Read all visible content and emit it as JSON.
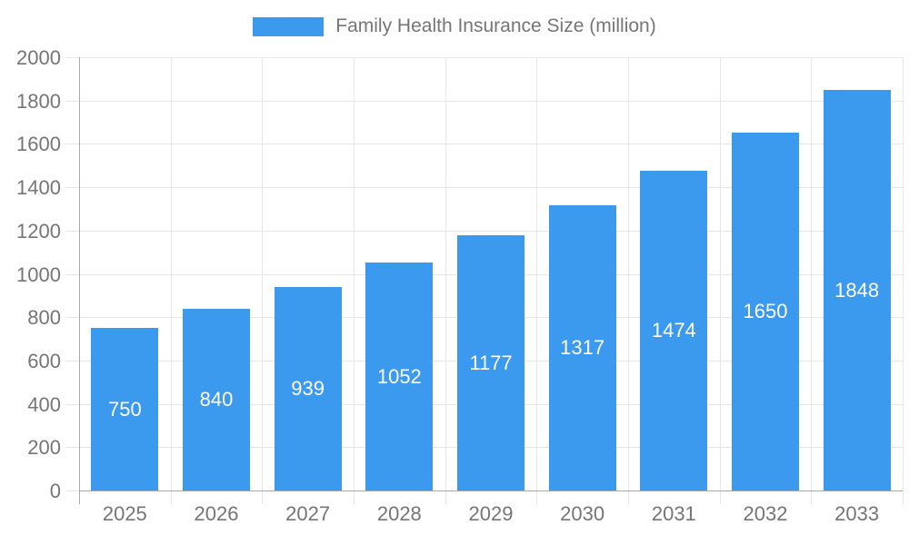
{
  "chart_data": {
    "type": "bar",
    "title": "Family Health Insurance Size (million)",
    "legend": [
      "Family Health Insurance Size (million)"
    ],
    "legend_position": "top",
    "categories": [
      "2025",
      "2026",
      "2027",
      "2028",
      "2029",
      "2030",
      "2031",
      "2032",
      "2033"
    ],
    "values": [
      750,
      840,
      939,
      1052,
      1177,
      1317,
      1474,
      1650,
      1848
    ],
    "xlabel": "",
    "ylabel": "",
    "ylim": [
      0,
      2000
    ],
    "ytick_step": 200,
    "yticks": [
      0,
      200,
      400,
      600,
      800,
      1000,
      1200,
      1400,
      1600,
      1800,
      2000
    ],
    "grid": true,
    "value_labels_position": "inside-center",
    "colors": {
      "bar": "#3b99ee",
      "value_label": "#ffffff",
      "axis_text": "#757575",
      "gridline": "#e6e6e6",
      "axis_line": "#a8a8a8",
      "background": "#ffffff"
    }
  }
}
